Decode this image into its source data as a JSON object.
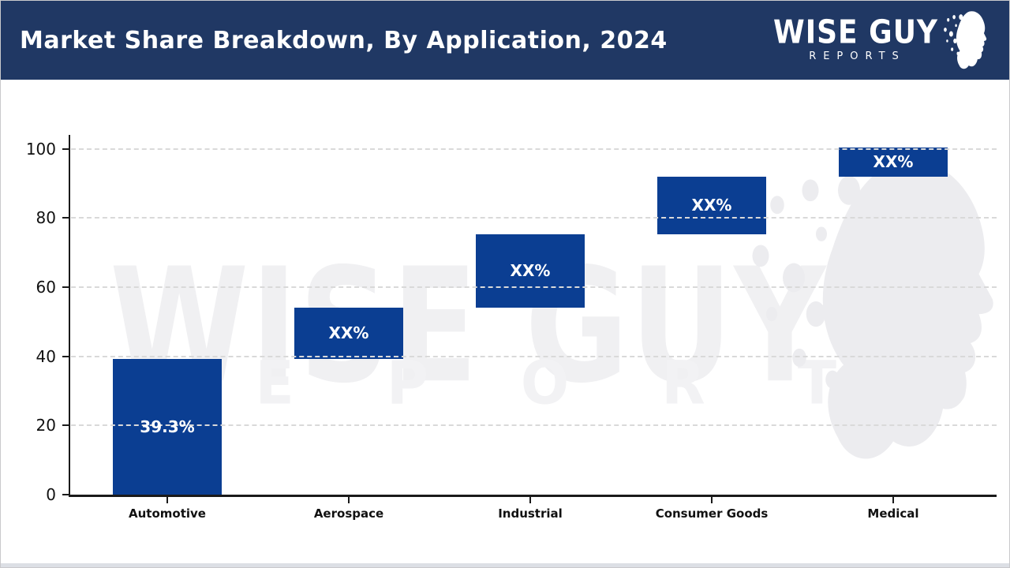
{
  "header": {
    "title": "Market Share Breakdown, By Application, 2024",
    "bg_color": "#203864",
    "logo": {
      "line1": "WISE GUY",
      "line2": "REPORTS"
    }
  },
  "watermark": {
    "line1": "WISE GUY",
    "line2": "REPORTS"
  },
  "chart_data": {
    "type": "bar",
    "subtype": "waterfall",
    "title": "Market Share Breakdown, By Application, 2024",
    "categories": [
      "Automotive",
      "Aerospace",
      "Industrial",
      "Consumer Goods",
      "Medical"
    ],
    "segments": [
      {
        "category": "Automotive",
        "start": 0,
        "end": 39.3,
        "value": 39.3,
        "value_label": "39.3%"
      },
      {
        "category": "Aerospace",
        "start": 39.3,
        "end": 54.1,
        "value": 14.8,
        "value_label": "XX%"
      },
      {
        "category": "Industrial",
        "start": 54.1,
        "end": 75.3,
        "value": 21.2,
        "value_label": "XX%"
      },
      {
        "category": "Consumer Goods",
        "start": 75.3,
        "end": 92.0,
        "value": 16.7,
        "value_label": "XX%"
      },
      {
        "category": "Medical",
        "start": 92.0,
        "end": 100.3,
        "value": 8.3,
        "value_label": "XX%"
      }
    ],
    "yticks": [
      0,
      20,
      40,
      60,
      80,
      100
    ],
    "ylim": [
      0,
      104
    ],
    "xlabel": "",
    "ylabel": "",
    "bar_color": "#0b3e92",
    "bar_label_color": "#ffffff",
    "grid": "horizontal-dashed",
    "grid_color": "#d9d9d9",
    "legend": "none"
  }
}
